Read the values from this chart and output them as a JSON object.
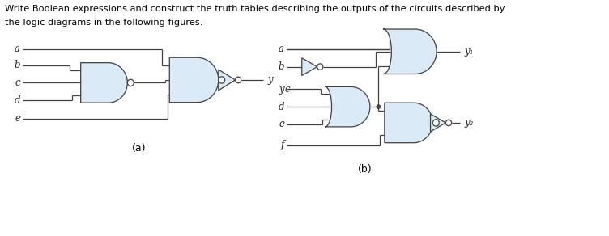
{
  "title_line1": "Write Boolean expressions and construct the truth tables describing the outputs of the circuits described by",
  "title_line2": "the logic diagrams in the following figures.",
  "gate_fill": "#daeaf7",
  "gate_edge": "#404040",
  "line_color": "#404040",
  "bg_color": "#ffffff",
  "fig_a": "(a)",
  "fig_b": "(b)"
}
